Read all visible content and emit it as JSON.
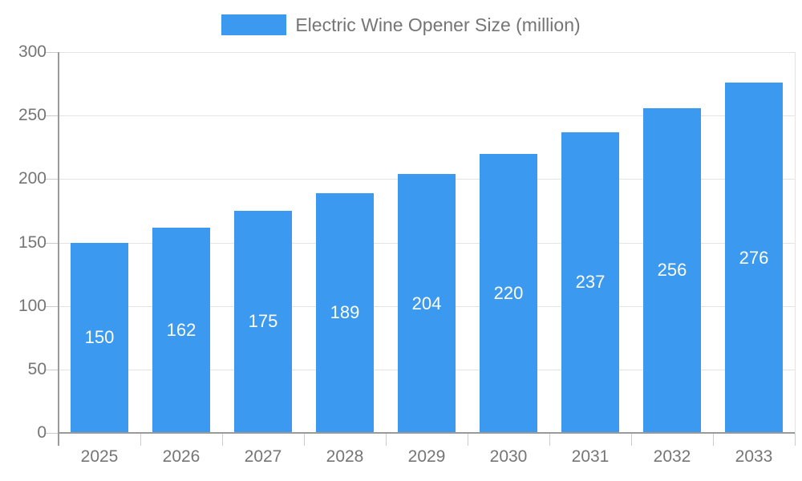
{
  "legend": {
    "label": "Electric Wine Opener Size (million)"
  },
  "chart_data": {
    "type": "bar",
    "title": "Electric Wine Opener Size (million)",
    "categories": [
      "2025",
      "2026",
      "2027",
      "2028",
      "2029",
      "2030",
      "2031",
      "2032",
      "2033"
    ],
    "values": [
      150,
      162,
      175,
      189,
      204,
      220,
      237,
      256,
      276
    ],
    "xlabel": "",
    "ylabel": "",
    "ylim": [
      0,
      300
    ],
    "yticks": [
      0,
      50,
      100,
      150,
      200,
      250,
      300
    ],
    "grid": true,
    "legend_position": "top-center",
    "bar_labels_inside": true,
    "colors": {
      "bar": "#3b99ef",
      "bar_label": "#ffffff",
      "axis_text": "#757575",
      "grid": "#e3e3e3",
      "axis_line": "#9a9a9a",
      "tick": "#cccccc",
      "background": "#ffffff"
    }
  }
}
